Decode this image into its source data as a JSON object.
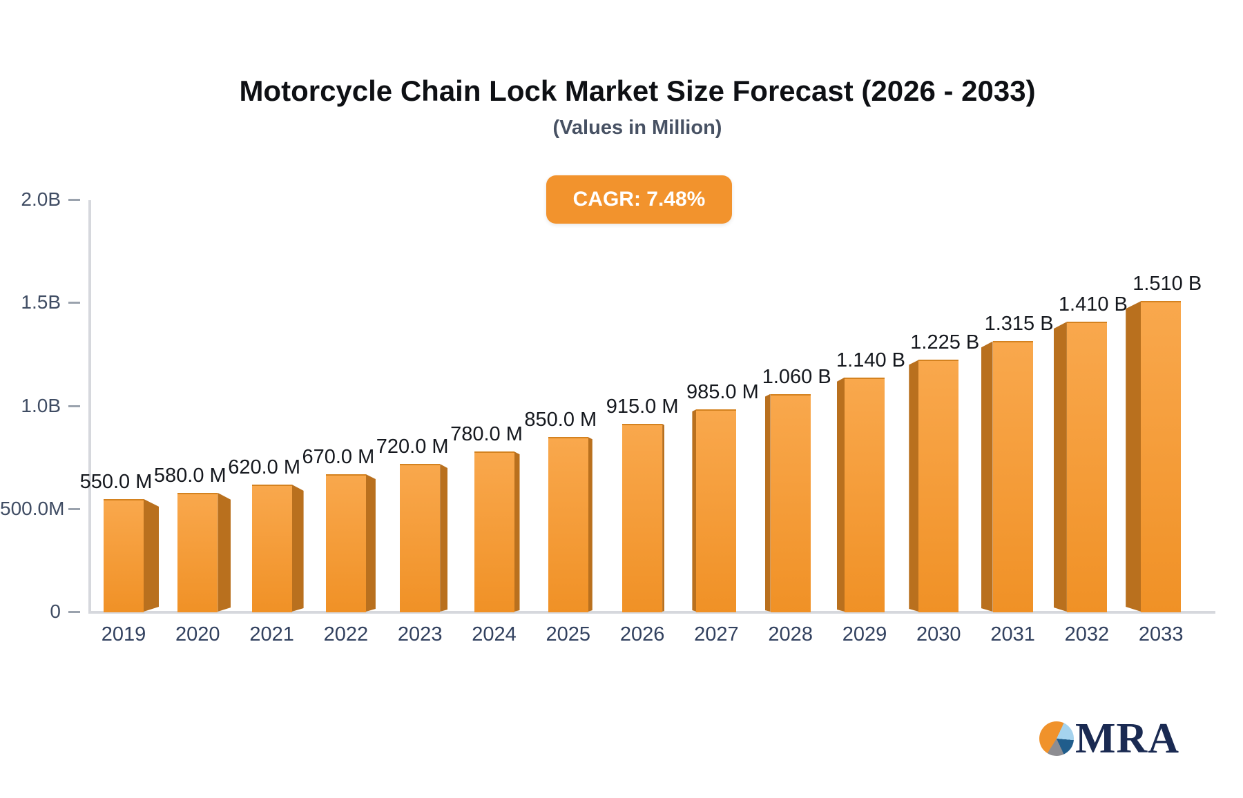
{
  "title": "Motorcycle Chain Lock Market Size Forecast (2026 - 2033)",
  "subtitle": "(Values in Million)",
  "badge": {
    "label": "CAGR: 7.48%",
    "bg": "#f2932d",
    "text_color": "#ffffff"
  },
  "chart_data": {
    "type": "bar",
    "title": "Motorcycle Chain Lock Market Size Forecast (2026 - 2033)",
    "subtitle": "(Values in Million)",
    "unit": "million USD",
    "categories": [
      "2019",
      "2020",
      "2021",
      "2022",
      "2023",
      "2024",
      "2025",
      "2026",
      "2027",
      "2028",
      "2029",
      "2030",
      "2031",
      "2032",
      "2033"
    ],
    "values": [
      550,
      580,
      620,
      670,
      720,
      780,
      850,
      915,
      985,
      1060,
      1140,
      1225,
      1315,
      1410,
      1510
    ],
    "value_labels": [
      "550.0 M",
      "580.0 M",
      "620.0 M",
      "670.0 M",
      "720.0 M",
      "780.0 M",
      "850.0 M",
      "915.0 M",
      "985.0 M",
      "1.060 B",
      "1.140 B",
      "1.225 B",
      "1.315 B",
      "1.410 B",
      "1.510 B"
    ],
    "xlabel": "",
    "ylabel": "",
    "ylim": [
      0,
      2000
    ],
    "yticks": [
      {
        "v": 0,
        "label": "0"
      },
      {
        "v": 500,
        "label": "500.0M"
      },
      {
        "v": 1000,
        "label": "1.0B"
      },
      {
        "v": 1500,
        "label": "1.5B"
      },
      {
        "v": 2000,
        "label": "2.0B"
      }
    ],
    "grid": false,
    "legend": "none",
    "bar_style": "3d",
    "colors": {
      "face_top": "#f9a84d",
      "face_bottom": "#f09126",
      "face_edge": "#d4821f",
      "side": "#b9701e",
      "axis_line": "#d6d8dd",
      "tick_dash": "#9aa2ad",
      "ytick_text": "#3f4c63",
      "xtick_text": "#32415f",
      "value_text": "#15181e"
    }
  },
  "logo": {
    "text": "MRA",
    "pie_colors": {
      "orange": "#f0922b",
      "light_blue": "#a5d3ee",
      "navy": "#205d8c",
      "gray": "#8d8d92"
    },
    "text_color": "#1a2a52"
  }
}
